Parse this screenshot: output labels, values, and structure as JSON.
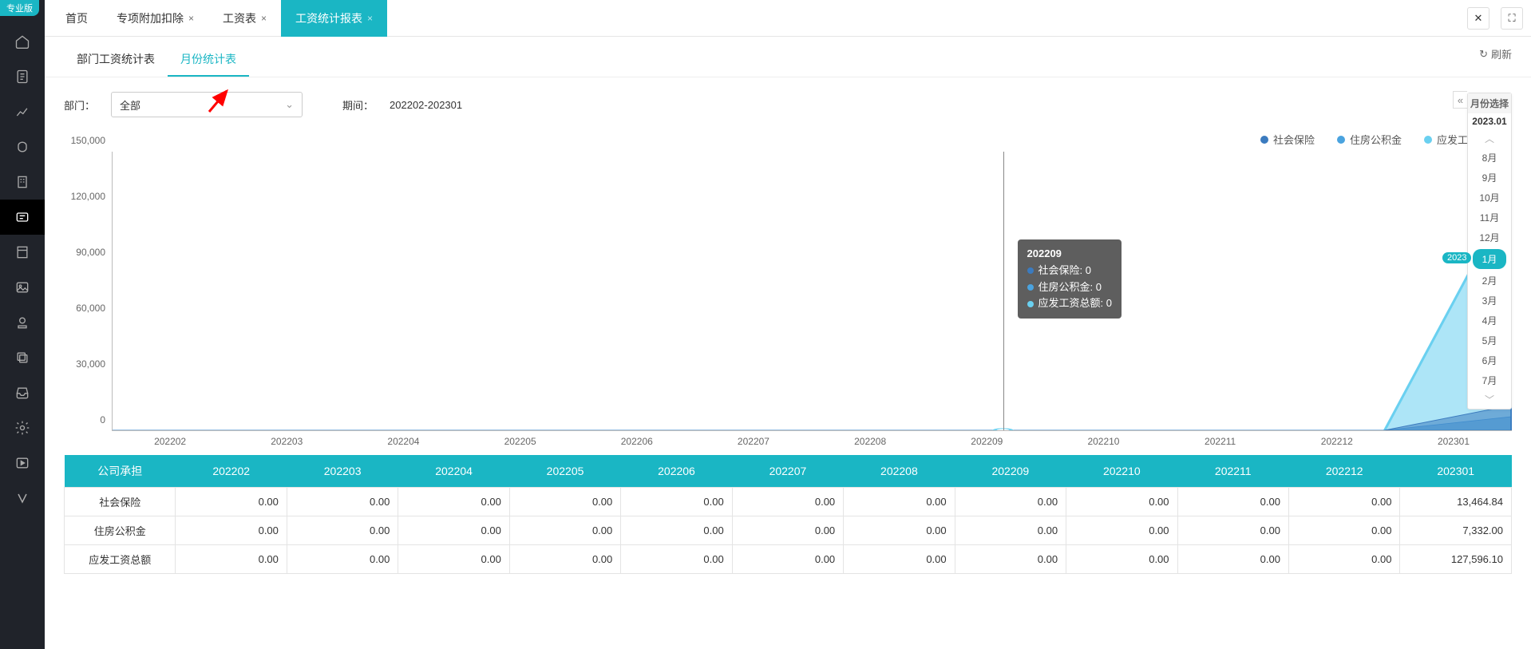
{
  "pro_badge": "专业版",
  "sidebar": {
    "active_index": 5
  },
  "tabs": [
    {
      "label": "首页",
      "closable": false
    },
    {
      "label": "专项附加扣除",
      "closable": true
    },
    {
      "label": "工资表",
      "closable": true
    },
    {
      "label": "工资统计报表",
      "closable": true,
      "active": true
    }
  ],
  "subtabs": {
    "items": [
      "部门工资统计表",
      "月份统计表"
    ],
    "active_index": 1
  },
  "refresh_label": "刷新",
  "filters": {
    "dept_label": "部门：",
    "dept_value": "全部",
    "period_label": "期间：",
    "period_value": "202202-202301"
  },
  "legend": {
    "items": [
      {
        "label": "社会保险",
        "color": "#3b7bbf"
      },
      {
        "label": "住房公积金",
        "color": "#4aa3df"
      },
      {
        "label": "应发工资总额",
        "color": "#6ad0f0"
      }
    ]
  },
  "chart": {
    "type": "area",
    "x_categories": [
      "202202",
      "202203",
      "202204",
      "202205",
      "202206",
      "202207",
      "202208",
      "202209",
      "202210",
      "202211",
      "202212",
      "202301"
    ],
    "y_ticks": [
      0,
      30000,
      60000,
      90000,
      120000,
      150000
    ],
    "y_tick_labels": [
      "0",
      "30,000",
      "60,000",
      "90,000",
      "120,000",
      "150,000"
    ],
    "ylim": [
      0,
      150000
    ],
    "series": [
      {
        "name": "社会保险",
        "color": "#3b7bbf",
        "fill_opacity": 0.55,
        "values": [
          0,
          0,
          0,
          0,
          0,
          0,
          0,
          0,
          0,
          0,
          0,
          13464.84
        ]
      },
      {
        "name": "住房公积金",
        "color": "#4aa3df",
        "fill_opacity": 0.55,
        "values": [
          0,
          0,
          0,
          0,
          0,
          0,
          0,
          0,
          0,
          0,
          0,
          7332.0
        ]
      },
      {
        "name": "应发工资总额",
        "color": "#6ad0f0",
        "fill_opacity": 0.55,
        "values": [
          0,
          0,
          0,
          0,
          0,
          0,
          0,
          0,
          0,
          0,
          0,
          127596.1
        ]
      }
    ],
    "hover_index": 7,
    "tooltip": {
      "title": "202209",
      "rows": [
        {
          "label": "社会保险: 0",
          "color": "#3b7bbf"
        },
        {
          "label": "住房公积金: 0",
          "color": "#4aa3df"
        },
        {
          "label": "应发工资总额: 0",
          "color": "#6ad0f0"
        }
      ]
    },
    "background_color": "#ffffff",
    "axis_color": "#bbbbbb"
  },
  "table": {
    "header_first": "公司承担",
    "columns": [
      "202202",
      "202203",
      "202204",
      "202205",
      "202206",
      "202207",
      "202208",
      "202209",
      "202210",
      "202211",
      "202212",
      "202301"
    ],
    "rows": [
      {
        "label": "社会保险",
        "values": [
          "0.00",
          "0.00",
          "0.00",
          "0.00",
          "0.00",
          "0.00",
          "0.00",
          "0.00",
          "0.00",
          "0.00",
          "0.00",
          "13,464.84"
        ]
      },
      {
        "label": "住房公积金",
        "values": [
          "0.00",
          "0.00",
          "0.00",
          "0.00",
          "0.00",
          "0.00",
          "0.00",
          "0.00",
          "0.00",
          "0.00",
          "0.00",
          "7,332.00"
        ]
      },
      {
        "label": "应发工资总额",
        "values": [
          "0.00",
          "0.00",
          "0.00",
          "0.00",
          "0.00",
          "0.00",
          "0.00",
          "0.00",
          "0.00",
          "0.00",
          "0.00",
          "127,596.10"
        ]
      }
    ],
    "header_bg": "#1ab6c4"
  },
  "month_side": {
    "title": "月份选择",
    "current_year_label": "2023.01",
    "items": [
      "8月",
      "9月",
      "10月",
      "11月",
      "12月",
      "1月",
      "2月",
      "3月",
      "4月",
      "5月",
      "6月",
      "7月"
    ],
    "current_index": 5,
    "year_badge": "2023"
  }
}
